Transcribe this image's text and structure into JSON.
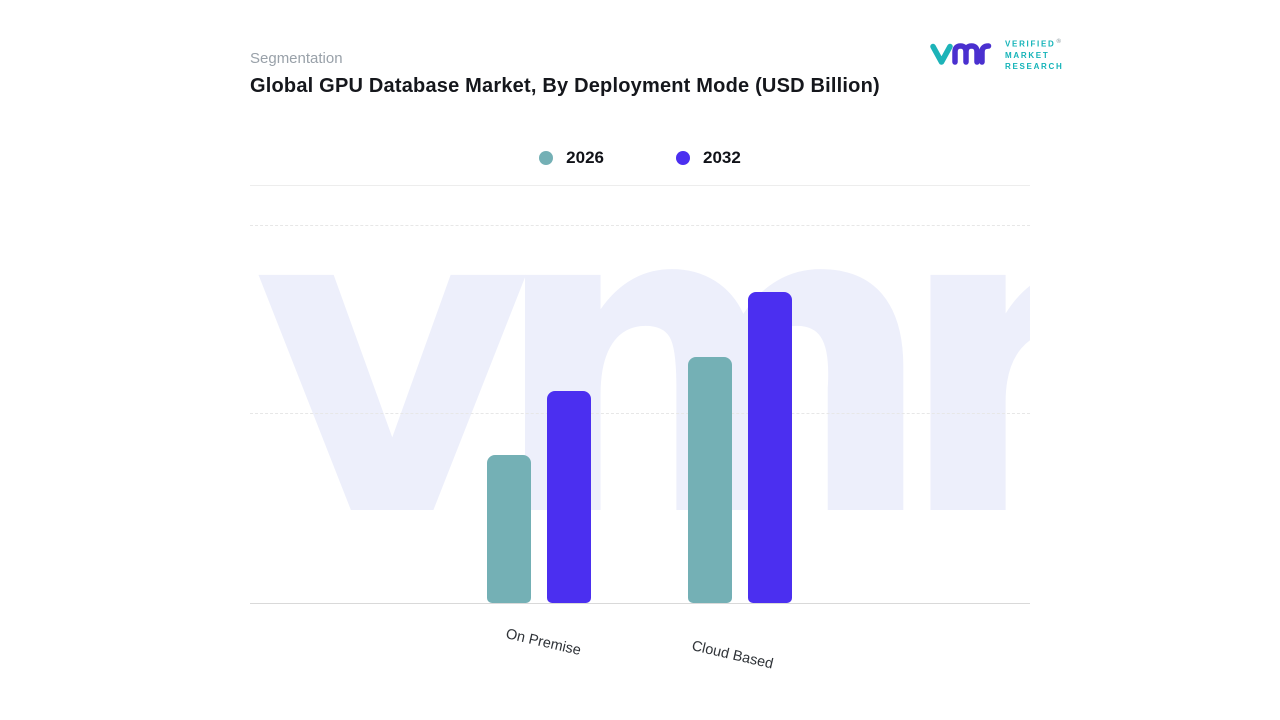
{
  "header": {
    "eyebrow": "Segmentation",
    "title": "Global GPU Database Market, By Deployment Mode (USD Billion)"
  },
  "logo": {
    "monogram": "vmr",
    "lines": [
      "VERIFIED",
      "MARKET",
      "RESEARCH"
    ],
    "registered": "®",
    "colors": {
      "teal": "#14b3b8",
      "indigo": "#4a30cf"
    }
  },
  "legend": {
    "items": [
      {
        "label": "2026",
        "color": "#74b0b5"
      },
      {
        "label": "2032",
        "color": "#4b2ff0"
      }
    ]
  },
  "watermark": "vmr",
  "chart_data": {
    "type": "bar",
    "categories": [
      "On Premise",
      "Cloud Based"
    ],
    "series": [
      {
        "name": "2026",
        "color": "#74b0b5",
        "values": [
          3.9,
          6.5
        ]
      },
      {
        "name": "2032",
        "color": "#4b2ff0",
        "values": [
          5.6,
          8.2
        ]
      }
    ],
    "title": "Global GPU Database Market, By Deployment Mode (USD Billion)",
    "xlabel": "",
    "ylabel": "USD Billion",
    "ylim": [
      0,
      10
    ],
    "grid": "horizontal-dashed",
    "legend_position": "top-center"
  }
}
